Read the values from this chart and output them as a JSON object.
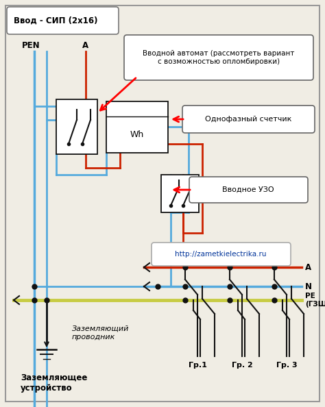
{
  "title": "Ввод - СИП (2х16)",
  "bg_color": "#f0ede4",
  "border_color": "#888888",
  "wire_colors": {
    "blue": "#55aadd",
    "red": "#cc2200",
    "yellow": "#c8cc44",
    "black": "#111111"
  },
  "labels": {
    "pen": "PEN",
    "a_top": "А",
    "a_right": "А",
    "n_right": "N",
    "pe_right": "PE\n(ГЗШ)",
    "meter": "Wh",
    "avtomat": "Вводной автомат (рассмотреть вариант\nс возможностью опломбировки)",
    "schetchik": "Однофазный счетчик",
    "uzo": "Вводное УЗО",
    "url": "http://zametkielectrika.ru",
    "zazeml_provod": "Заземляющий\nпроводник",
    "zazeml_ustr": "Заземляющее\nустройство",
    "gr1": "Гр.1",
    "gr2": "Гр. 2",
    "gr3": "Гр. 3"
  }
}
